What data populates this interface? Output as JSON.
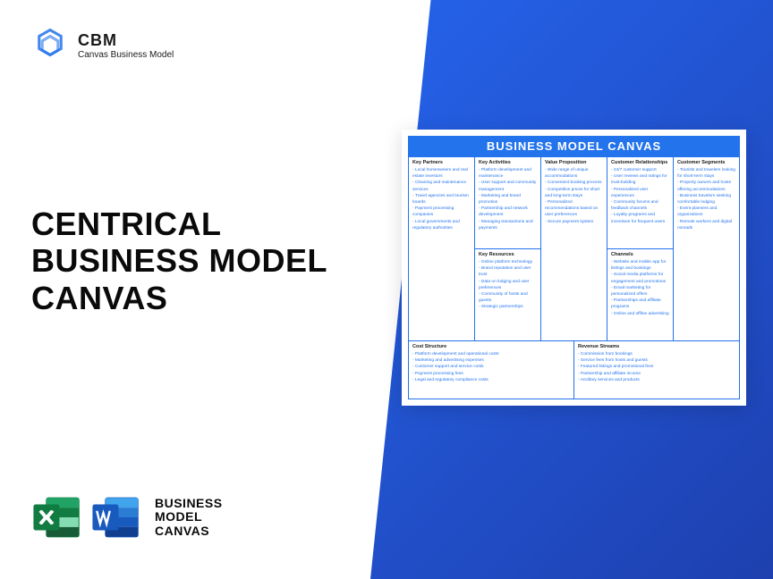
{
  "logo": {
    "title": "CBM",
    "subtitle": "Canvas Business Model"
  },
  "main_title": "CENTRICAL\nBUSINESS MODEL\nCANVAS",
  "format_label": "BUSINESS\nMODEL\nCANVAS",
  "canvas": {
    "header": "BUSINESS MODEL CANVAS",
    "columns": [
      {
        "sections": [
          {
            "title": "Key Partners",
            "items": [
              "Local homeowners and real estate investors",
              "Cleaning and maintenance services",
              "Travel agencies and tourism boards",
              "Payment processing companies",
              "Local governments and regulatory authorities"
            ]
          }
        ]
      },
      {
        "sections": [
          {
            "title": "Key Activities",
            "items": [
              "Platform development and maintenance",
              "User support and community management",
              "Marketing and brand promotion",
              "Partnership and network development",
              "Managing transactions and payments"
            ]
          },
          {
            "title": "Key Resources",
            "items": [
              "Online platform technology",
              "Brand reputation and user trust",
              "Data on lodging and user preferences",
              "Community of hosts and guests",
              "Strategic partnerships"
            ]
          }
        ]
      },
      {
        "sections": [
          {
            "title": "Value Proposition",
            "items": [
              "Wide range of unique accommodations",
              "Convenient booking process",
              "Competitive prices for short and long-term stays",
              "Personalized recommendations based on user preferences",
              "Secure payment system"
            ]
          }
        ]
      },
      {
        "sections": [
          {
            "title": "Customer Relationships",
            "items": [
              "24/7 customer support",
              "User reviews and ratings for trust-building",
              "Personalized user experiences",
              "Community forums and feedback channels",
              "Loyalty programs and incentives for frequent users"
            ]
          },
          {
            "title": "Channels",
            "items": [
              "Website and mobile app for listings and bookings",
              "Social media platforms for engagement and promotions",
              "Email marketing for personalized offers",
              "Partnerships and affiliate programs",
              "Online and offline advertising"
            ]
          }
        ]
      },
      {
        "sections": [
          {
            "title": "Customer Segments",
            "items": [
              "Tourists and travelers looking for short-term stays",
              "Property owners and hosts offering accommodations",
              "Business travelers seeking comfortable lodging",
              "Event planners and organizations",
              "Remote workers and digital nomads"
            ]
          }
        ]
      }
    ],
    "bottom": [
      {
        "title": "Cost Structure",
        "items": [
          "Platform development and operational costs",
          "Marketing and advertising expenses",
          "Customer support and service costs",
          "Payment processing fees",
          "Legal and regulatory compliance costs"
        ]
      },
      {
        "title": "Revenue Streams",
        "items": [
          "Commission from bookings",
          "Service fees from hosts and guests",
          "Featured listings and promotional fees",
          "Partnership and affiliate income",
          "Ancillary services and products"
        ]
      }
    ]
  },
  "colors": {
    "primary": "#2373ec",
    "dark_blue": "#1e40af",
    "text": "#0a0a0a",
    "excel": "#107c41",
    "word": "#185abd"
  }
}
